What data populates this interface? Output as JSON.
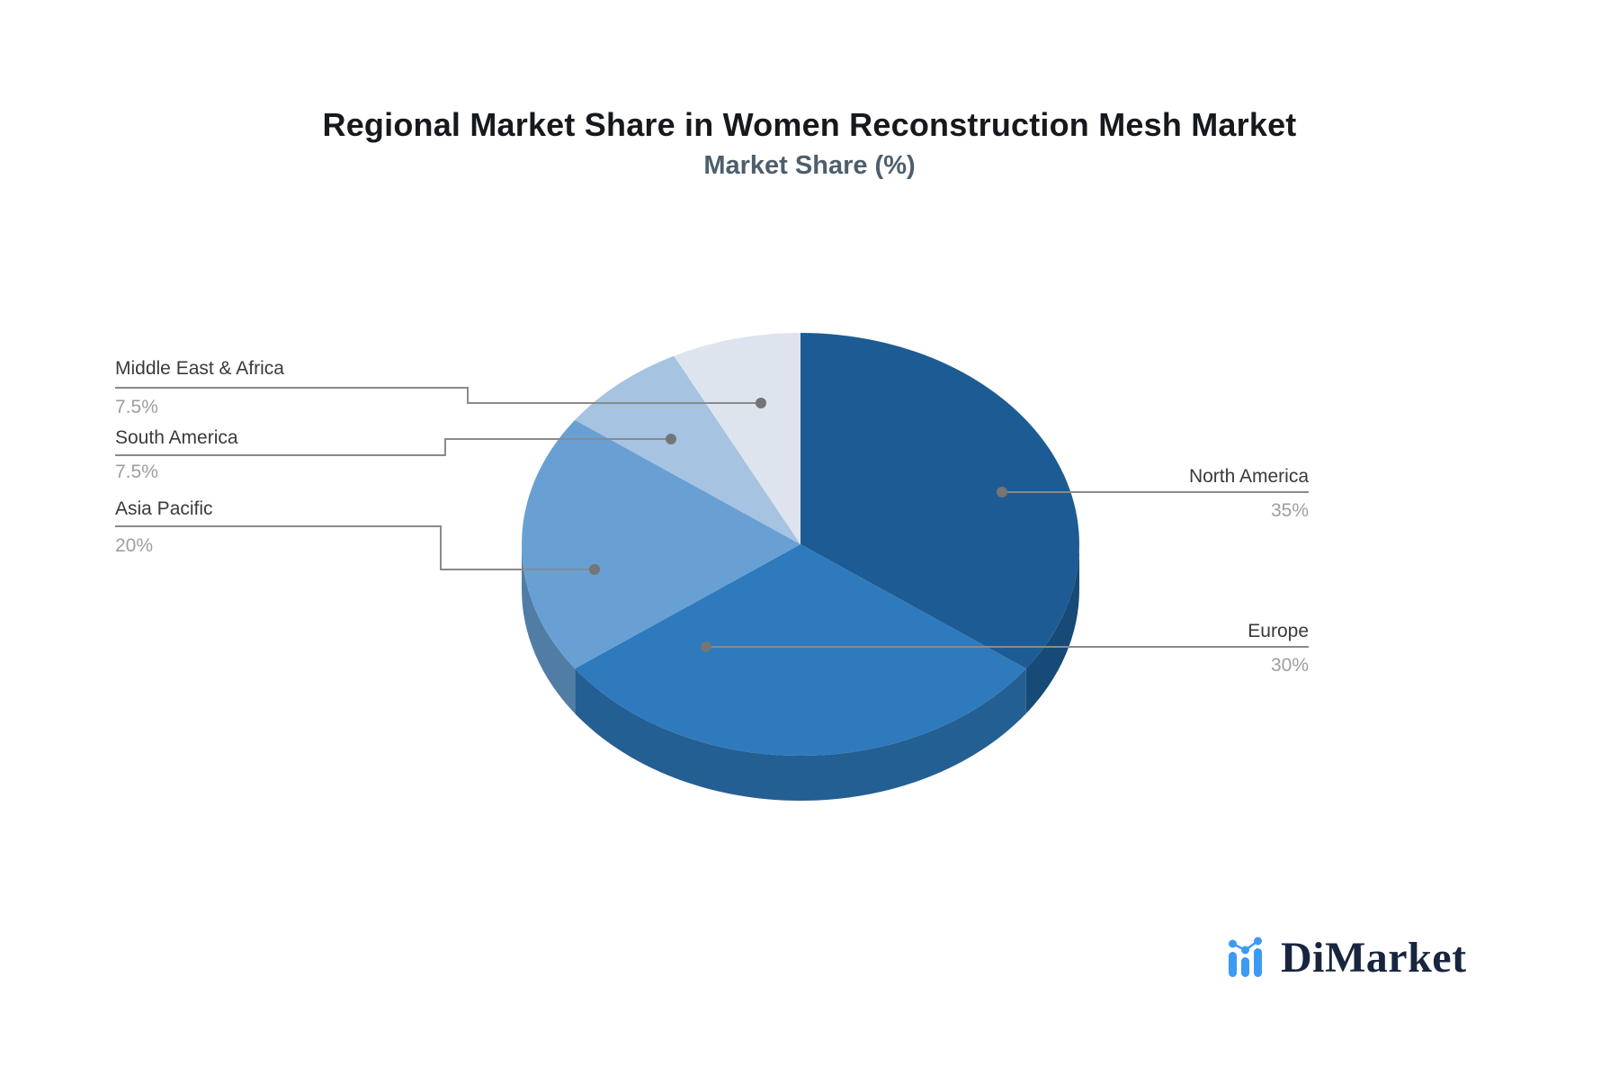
{
  "chart_data": {
    "type": "pie",
    "style": "3d",
    "title": "Regional Market Share in Women Reconstruction Mesh Market",
    "subtitle": "Market Share (%)",
    "unit": "%",
    "start_angle_deg": 0,
    "direction": "clockwise",
    "slices": [
      {
        "name": "North America",
        "value": 35,
        "label": "35%",
        "color": "#1d5b94",
        "side_color": "#174a76",
        "label_side": "right"
      },
      {
        "name": "Europe",
        "value": 30,
        "label": "30%",
        "color": "#2e7abd",
        "side_color": "#245f93",
        "label_side": "right"
      },
      {
        "name": "Asia Pacific",
        "value": 20,
        "label": "20%",
        "color": "#68a0d3",
        "side_color": "#517da5",
        "label_side": "left"
      },
      {
        "name": "South America",
        "value": 7.5,
        "label": "7.5%",
        "color": "#a6c3e1",
        "side_color": "#81a2c2",
        "label_side": "left"
      },
      {
        "name": "Middle East & Africa",
        "value": 7.5,
        "label": "7.5%",
        "color": "#dee4ee",
        "side_color": "#b4bfd0",
        "label_side": "left"
      }
    ],
    "legend": "none",
    "leader_line_color": "#8a8a8a",
    "leader_dot_color": "#757575"
  },
  "logo": {
    "text": "DiMarket",
    "icon": "bar-chart-logo-icon",
    "icon_color": "#3d9af4",
    "text_color": "#18253f"
  }
}
